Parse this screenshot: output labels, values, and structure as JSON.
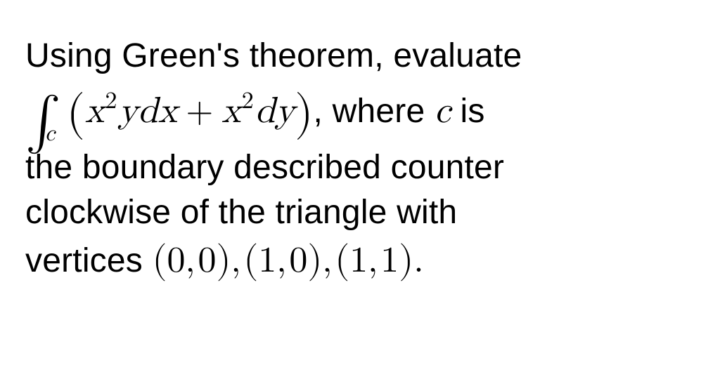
{
  "background_color": "#ffffff",
  "text_color": "#000000",
  "body_font_family": "Arial, Helvetica, sans-serif",
  "math_font_family": "Cambria Math, Latin Modern Math, STIX Two Math, Georgia, Times New Roman, serif",
  "body_font_size_pt": 36,
  "math_font_size_pt": 39,
  "line1": {
    "t1": "Using Green's theorem, evaluate"
  },
  "line2": {
    "integral_symbol": "∫",
    "integral_subscript": "c",
    "open_paren": "(",
    "term1_x": "x",
    "term1_exp": "2",
    "term1_y": "y",
    "term1_d": "d",
    "term1_dx": "x",
    "plus": "+",
    "term2_x": "x",
    "term2_exp": "2",
    "term2_d": "d",
    "term2_dy": "y",
    "close_paren": ")",
    "after_text": ", where ",
    "var_c": "c",
    "after_text2": " is"
  },
  "line3": {
    "t1": "the boundary described counter"
  },
  "line4": {
    "t1": "clockwise of the triangle with"
  },
  "line5": {
    "label": "vertices ",
    "v1_open": "(",
    "v1_a": "0",
    "v1_comma": ",",
    "v1_b": "0",
    "v1_close": ")",
    "sep1": ",",
    "v2_open": "(",
    "v2_a": "1",
    "v2_comma": ",",
    "v2_b": "0",
    "v2_close": ")",
    "sep2": ",",
    "v3_open": "(",
    "v3_a": "1",
    "v3_comma": ",",
    "v3_b": "1",
    "v3_close": ")",
    "period": "."
  }
}
